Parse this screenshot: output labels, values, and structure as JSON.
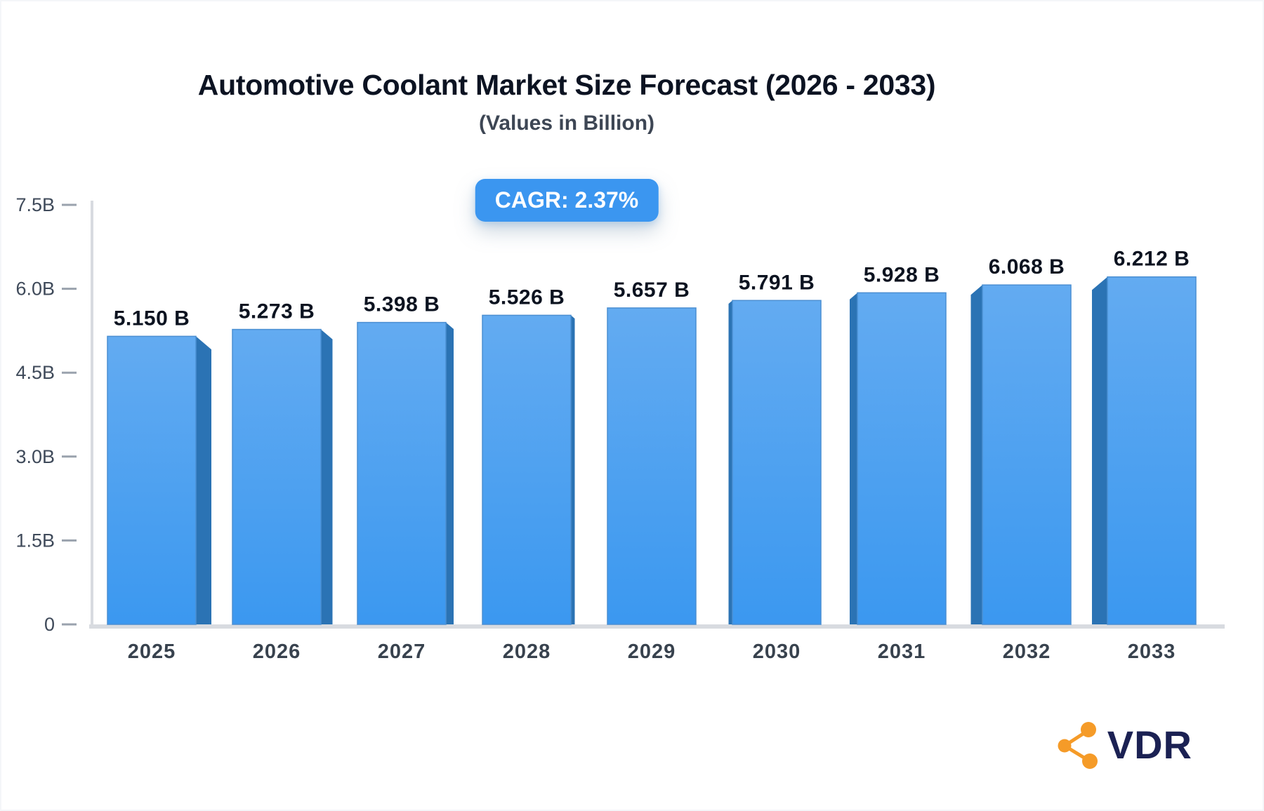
{
  "header": {
    "title": "Automotive Coolant Market Size Forecast (2026 - 2033)",
    "subtitle": "(Values in Billion)"
  },
  "badge": {
    "label": "CAGR: 2.37%",
    "bg_color": "#3b96f0",
    "text_color": "#ffffff"
  },
  "chart_data": {
    "type": "bar",
    "title": "Automotive Coolant Market Size Forecast (2026 - 2033)",
    "subtitle": "(Values in Billion)",
    "unit": "Billion",
    "cagr": "2.37%",
    "categories": [
      "2025",
      "2026",
      "2027",
      "2028",
      "2029",
      "2030",
      "2031",
      "2032",
      "2033"
    ],
    "values": [
      5.15,
      5.273,
      5.398,
      5.526,
      5.657,
      5.791,
      5.928,
      6.068,
      6.212
    ],
    "value_labels": [
      "5.150 B",
      "5.273 B",
      "5.398 B",
      "5.526 B",
      "5.657 B",
      "5.791 B",
      "5.928 B",
      "6.068 B",
      "6.212 B"
    ],
    "ylim": [
      0,
      7.5
    ],
    "y_ticks": [
      0,
      1.5,
      3.0,
      4.5,
      6.0,
      7.5
    ],
    "y_tick_labels": [
      "0",
      "1.5B",
      "3.0B",
      "4.5B",
      "6.0B",
      "7.5B"
    ],
    "grid": false,
    "legend": false,
    "xlabel": "",
    "ylabel": "",
    "colors": {
      "bar_face_top": "#63abf1",
      "bar_face_bottom": "#3b98f0",
      "bar_side": "#2b73b4",
      "bar_edge": "#4b8fd2",
      "axis_line": "#d8dbe0",
      "tick_mark": "#9aa2ad",
      "tick_label": "#3f4a5a",
      "value_label": "#0c1320",
      "category_label": "#38424e"
    }
  },
  "logo": {
    "text": "VDR",
    "icon": "share-nodes-icon",
    "icon_color": "#f59b28",
    "text_color": "#1b2153"
  }
}
